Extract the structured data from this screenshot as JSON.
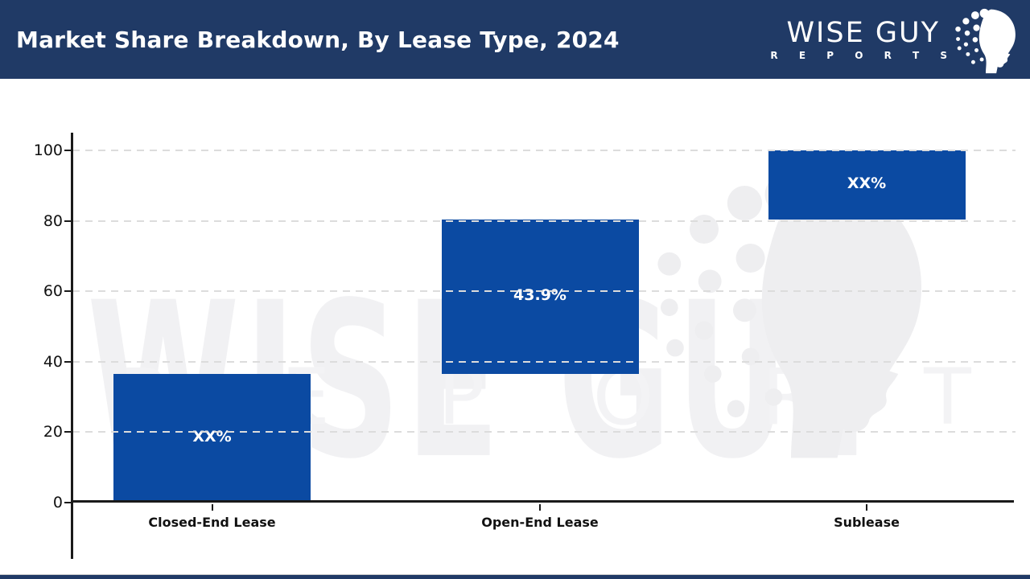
{
  "header": {
    "title": "Market Share Breakdown, By Lease Type, 2024",
    "logo": {
      "wordmark": "WISE GUY",
      "subtext": "R E P O R T S"
    }
  },
  "watermark": {
    "wordmark": "WISE GUY",
    "subtext": "R E P O R T S"
  },
  "chart_data": {
    "type": "bar",
    "subtype": "floating-waterfall-segments",
    "title": "Market Share Breakdown, By Lease Type, 2024",
    "categories": [
      "Closed-End Lease",
      "Open-End Lease",
      "Sublease"
    ],
    "segments": [
      {
        "category": "Closed-End Lease",
        "label": "XX%",
        "start": 0,
        "end": 36.5
      },
      {
        "category": "Open-End Lease",
        "label": "43.9%",
        "start": 36.5,
        "end": 80.4
      },
      {
        "category": "Sublease",
        "label": "XX%",
        "start": 80.4,
        "end": 100
      }
    ],
    "ylim": [
      0,
      100
    ],
    "yticks": [
      0,
      20,
      40,
      60,
      80,
      100
    ],
    "xlabel": "",
    "ylabel": "",
    "grid": "horizontal-dashed",
    "legend": "none",
    "bar_color": "#0b4aa2",
    "bar_label_color": "#ffffff",
    "axis_color": "#1a1a1a",
    "header_color": "#203a66"
  }
}
